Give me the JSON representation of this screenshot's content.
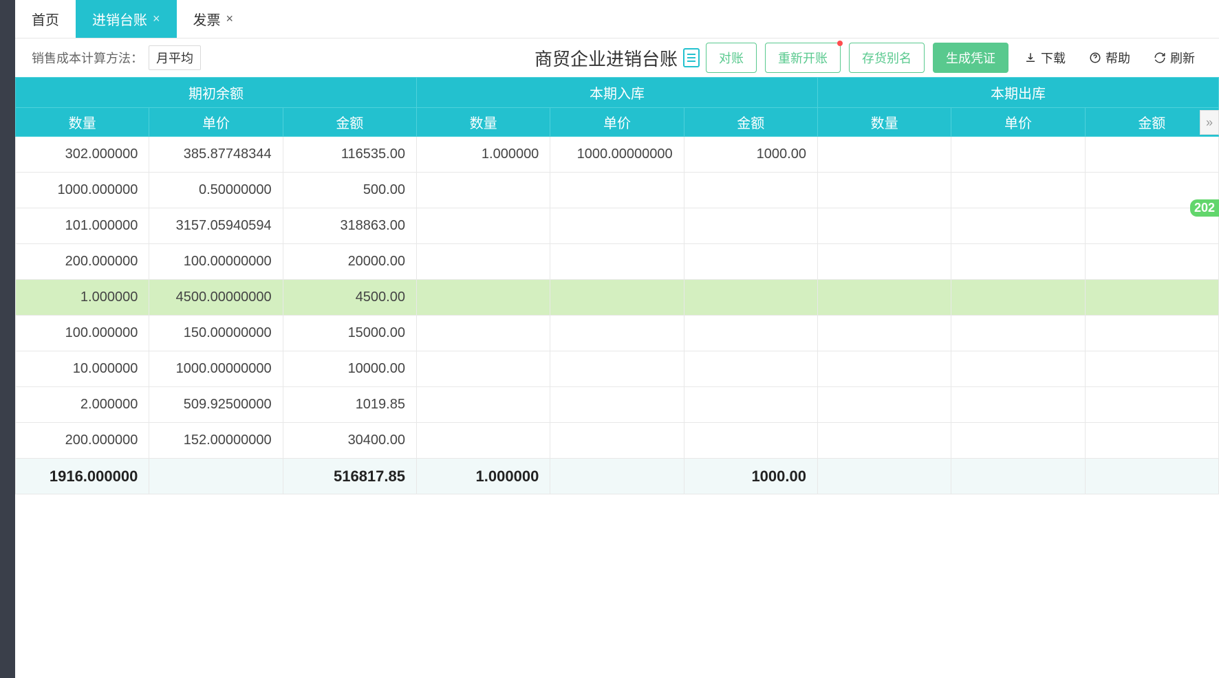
{
  "colors": {
    "teal": "#23c1cf",
    "green": "#59c98e",
    "row_highlight": "#d4efc0",
    "sidebar": "#3a3f4a",
    "badge_green": "#62d66c"
  },
  "tabs": [
    {
      "label": "首页",
      "closable": false,
      "active": false
    },
    {
      "label": "进销台账",
      "closable": true,
      "active": true
    },
    {
      "label": "发票",
      "closable": true,
      "active": false
    }
  ],
  "toolbar": {
    "method_label": "销售成本计算方法：",
    "method_value": "月平均",
    "page_title": "商贸企业进销台账",
    "btn_reconcile": "对账",
    "btn_reopen": "重新开账",
    "btn_alias": "存货别名",
    "btn_generate": "生成凭证",
    "btn_download": "下载",
    "btn_help": "帮助",
    "btn_refresh": "刷新"
  },
  "table": {
    "group_headers": [
      "期初余额",
      "本期入库",
      "本期出库"
    ],
    "sub_headers": [
      "数量",
      "单价",
      "金额",
      "数量",
      "单价",
      "金额",
      "数量",
      "单价",
      "金额"
    ],
    "rows": [
      {
        "cells": [
          "302.000000",
          "385.87748344",
          "116535.00",
          "1.000000",
          "1000.00000000",
          "1000.00",
          "",
          "",
          ""
        ],
        "highlight": false
      },
      {
        "cells": [
          "1000.000000",
          "0.50000000",
          "500.00",
          "",
          "",
          "",
          "",
          "",
          ""
        ],
        "highlight": false
      },
      {
        "cells": [
          "101.000000",
          "3157.05940594",
          "318863.00",
          "",
          "",
          "",
          "",
          "",
          ""
        ],
        "highlight": false
      },
      {
        "cells": [
          "200.000000",
          "100.00000000",
          "20000.00",
          "",
          "",
          "",
          "",
          "",
          ""
        ],
        "highlight": false
      },
      {
        "cells": [
          "1.000000",
          "4500.00000000",
          "4500.00",
          "",
          "",
          "",
          "",
          "",
          ""
        ],
        "highlight": true
      },
      {
        "cells": [
          "100.000000",
          "150.00000000",
          "15000.00",
          "",
          "",
          "",
          "",
          "",
          ""
        ],
        "highlight": false
      },
      {
        "cells": [
          "10.000000",
          "1000.00000000",
          "10000.00",
          "",
          "",
          "",
          "",
          "",
          ""
        ],
        "highlight": false
      },
      {
        "cells": [
          "2.000000",
          "509.92500000",
          "1019.85",
          "",
          "",
          "",
          "",
          "",
          ""
        ],
        "highlight": false
      },
      {
        "cells": [
          "200.000000",
          "152.00000000",
          "30400.00",
          "",
          "",
          "",
          "",
          "",
          ""
        ],
        "highlight": false
      }
    ],
    "total_row": [
      "1916.000000",
      "",
      "516817.85",
      "1.000000",
      "",
      "1000.00",
      "",
      "",
      ""
    ]
  },
  "year_badge": "202"
}
